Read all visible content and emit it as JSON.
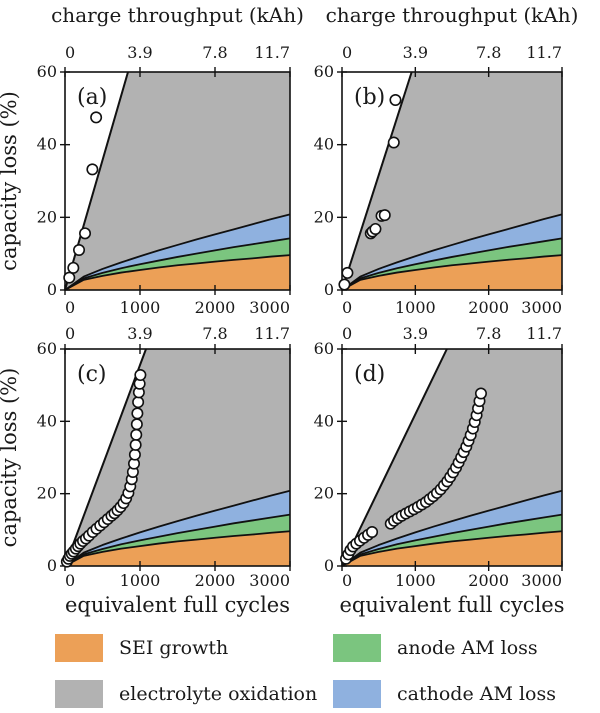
{
  "colors": {
    "sei": "#ECA057",
    "electrolyte": "#B2B2B2",
    "anode": "#7BC57F",
    "cathode": "#8FB1DF",
    "line": "#111111",
    "marker_fill": "#FFFFFF",
    "marker_edge": "#111111",
    "text": "#1a1a1a"
  },
  "chart_data": {
    "type": "area",
    "description": "2x2 grid of stacked degradation-mode areas with experimental capacity-loss scatter points",
    "shared": {
      "top_xlabel": "charge throughput (kAh)",
      "xlabel": "equivalent full cycles",
      "ylabel": "capacity loss (%)",
      "xlim": [
        0,
        3000
      ],
      "ylim": [
        0,
        60
      ],
      "top_xlim_kah": [
        0,
        11.7
      ],
      "x_ticks": [
        0,
        1000,
        2000,
        3000
      ],
      "x_tick_labels": [
        "0",
        "1000",
        "2000",
        "3000"
      ],
      "top_x_ticks_kah": [
        0,
        3.9,
        7.8,
        11.7
      ],
      "top_x_tick_labels": [
        "0",
        "3.9",
        "7.8",
        "11.7"
      ],
      "y_ticks": [
        0,
        20,
        40,
        60
      ],
      "y_tick_labels": [
        "0",
        "20",
        "40",
        "60"
      ],
      "grid": false,
      "marker_style": {
        "shape": "circle",
        "fill": "white",
        "edge": "black"
      },
      "stack_x": [
        0,
        250,
        500,
        750,
        1000,
        1250,
        1500,
        1750,
        2000,
        2250,
        2500,
        2750,
        3000
      ],
      "sei_top": [
        0,
        2.8,
        3.9,
        4.8,
        5.5,
        6.2,
        6.8,
        7.3,
        7.8,
        8.3,
        8.7,
        9.2,
        9.6
      ],
      "anode_top": [
        0,
        3.2,
        4.7,
        6.0,
        7.1,
        8.1,
        9.1,
        10.0,
        10.9,
        11.8,
        12.6,
        13.4,
        14.2
      ],
      "cathode_top": [
        0,
        3.7,
        5.8,
        7.6,
        9.3,
        10.9,
        12.4,
        13.9,
        15.3,
        16.7,
        18.1,
        19.5,
        20.8
      ]
    },
    "panels": [
      {
        "label": "(a)",
        "total_line_x_at_ymax": 840,
        "scatter": {
          "x": [
            57,
            111,
            187,
            267,
            365,
            415
          ],
          "y": [
            3.4,
            6.1,
            11.0,
            15.6,
            33.2,
            47.5
          ]
        }
      },
      {
        "label": "(b)",
        "total_line_x_at_ymax": 950,
        "scatter": {
          "x": [
            33,
            74,
            392,
            416,
            456,
            539,
            583,
            706,
            729
          ],
          "y": [
            1.5,
            4.7,
            15.6,
            16.1,
            16.8,
            20.4,
            20.6,
            40.6,
            52.3
          ]
        }
      },
      {
        "label": "(c)",
        "total_line_x_at_ymax": 1080,
        "scatter": {
          "x": [
            25,
            45,
            65,
            90,
            115,
            145,
            175,
            205,
            240,
            280,
            320,
            370,
            420,
            470,
            520,
            570,
            620,
            660,
            700,
            740,
            780,
            815,
            845,
            870,
            890,
            905,
            920,
            932,
            942,
            950,
            958,
            965,
            975,
            985,
            995,
            1005
          ],
          "y": [
            1.2,
            2.0,
            2.8,
            3.4,
            4.0,
            4.8,
            5.5,
            6.2,
            6.9,
            7.6,
            8.4,
            9.4,
            10.3,
            11.2,
            12.1,
            13.0,
            13.9,
            14.6,
            15.4,
            16.3,
            17.4,
            18.7,
            20.2,
            22.0,
            24.0,
            26.0,
            28.3,
            30.8,
            33.5,
            36.3,
            39.2,
            42.2,
            45.3,
            48.0,
            50.4,
            52.8
          ]
        }
      },
      {
        "label": "(d)",
        "total_line_x_at_ymax": 1430,
        "scatter": {
          "x": [
            55,
            85,
            115,
            150,
            195,
            245,
            300,
            355,
            410,
            665,
            710,
            760,
            815,
            870,
            925,
            980,
            1035,
            1090,
            1145,
            1195,
            1245,
            1295,
            1345,
            1390,
            1435,
            1475,
            1515,
            1555,
            1590,
            1625,
            1660,
            1695,
            1725,
            1755,
            1785,
            1810,
            1835,
            1855,
            1875,
            1895
          ],
          "y": [
            2.0,
            3.2,
            4.4,
            5.4,
            6.2,
            7.0,
            7.8,
            8.6,
            9.4,
            11.7,
            12.5,
            13.2,
            13.9,
            14.5,
            15.1,
            15.7,
            16.3,
            17.0,
            17.7,
            18.5,
            19.3,
            20.2,
            21.2,
            22.3,
            23.4,
            24.6,
            25.9,
            27.2,
            28.6,
            30.0,
            31.5,
            33.0,
            34.6,
            36.2,
            38.0,
            39.8,
            41.7,
            43.6,
            45.6,
            47.7
          ]
        }
      }
    ]
  },
  "legend": {
    "items": [
      {
        "label": "SEI growth",
        "color": "#ECA057"
      },
      {
        "label": "electrolyte oxidation",
        "color": "#B2B2B2"
      },
      {
        "label": "anode AM loss",
        "color": "#7BC57F"
      },
      {
        "label": "cathode AM loss",
        "color": "#8FB1DF"
      }
    ]
  }
}
